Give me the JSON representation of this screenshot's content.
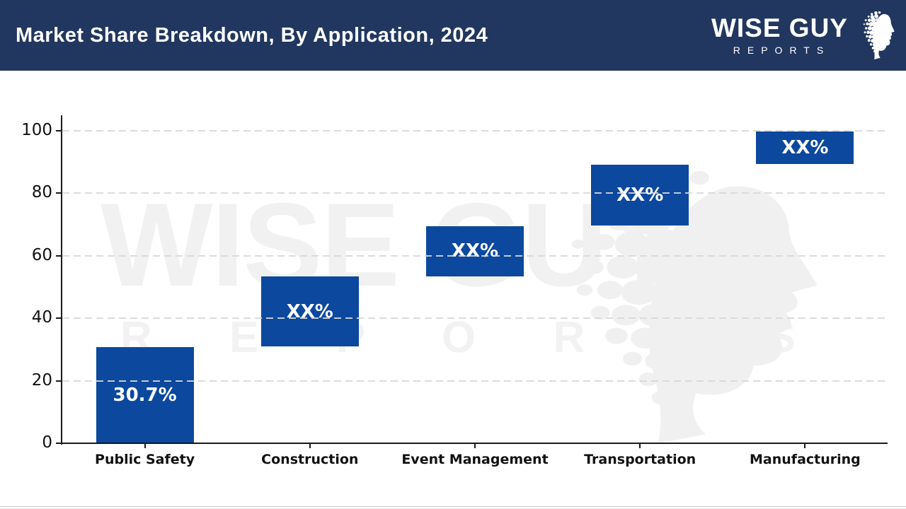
{
  "header": {
    "title": "Market Share Breakdown, By Application, 2024",
    "logo": {
      "brand": "WISE GUY",
      "sub": "REPORTS"
    }
  },
  "watermark": {
    "brand": "WISE GUY",
    "sub": "R E P O R T S"
  },
  "chart_data": {
    "type": "bar",
    "variant": "waterfall",
    "title": "Market Share Breakdown, By Application, 2024",
    "categories": [
      "Public Safety",
      "Construction",
      "Event Management",
      "Transportation",
      "Manufacturing"
    ],
    "segments": [
      {
        "category": "Public Safety",
        "start": 0,
        "end": 30.7,
        "label": "30.7%"
      },
      {
        "category": "Construction",
        "start": 31.0,
        "end": 53.3,
        "label": "XX%"
      },
      {
        "category": "Event Management",
        "start": 53.5,
        "end": 69.5,
        "label": "XX%"
      },
      {
        "category": "Transportation",
        "start": 69.7,
        "end": 89.1,
        "label": "XX%"
      },
      {
        "category": "Manufacturing",
        "start": 89.3,
        "end": 99.8,
        "label": "XX%"
      }
    ],
    "y_ticks": [
      0,
      20,
      40,
      60,
      80,
      100
    ],
    "ylim": [
      0,
      105
    ],
    "grid": "horizontal-dashed",
    "legend": "none",
    "xlabel": "",
    "ylabel": ""
  },
  "colors": {
    "header_bg": "#21375f",
    "bar": "#0c489d",
    "bar_label": "#ffffff",
    "grid": "#d8d8d8",
    "axis": "#1a1a1a",
    "watermark": "#f0f0f0",
    "page_bg": "#ffffff"
  }
}
